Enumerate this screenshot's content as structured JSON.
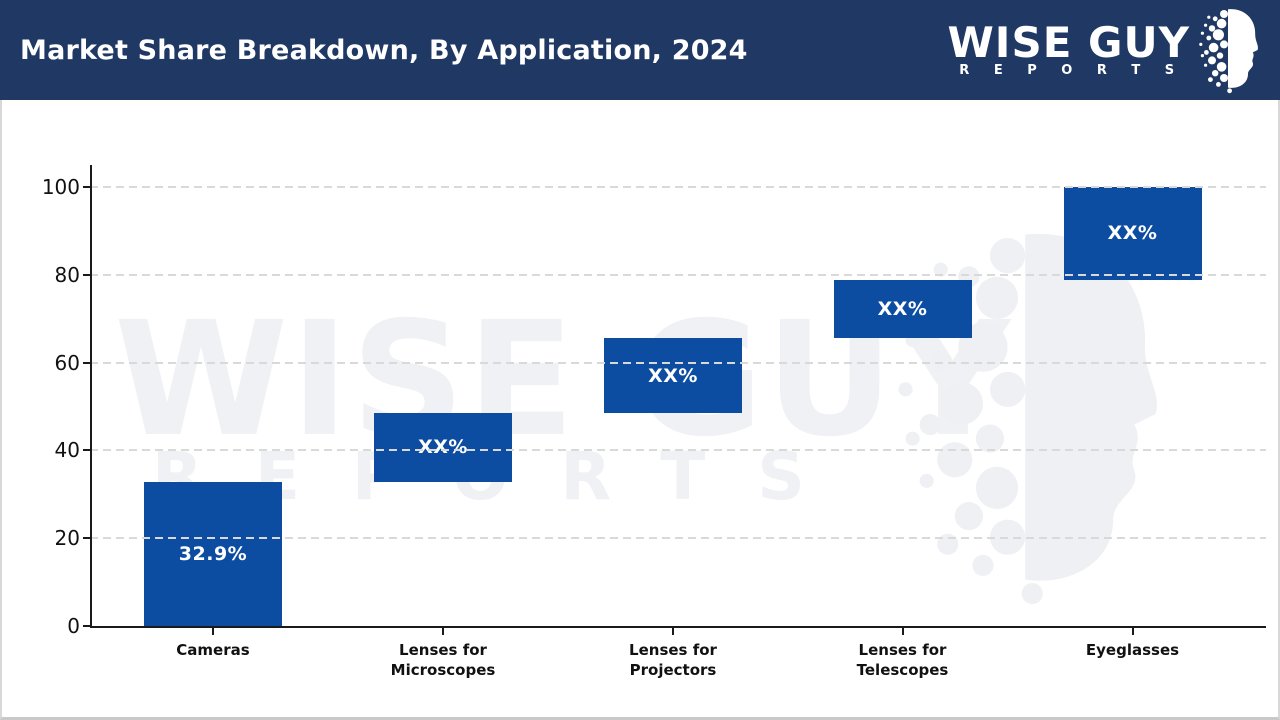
{
  "header": {
    "title": "Market Share Breakdown, By Application, 2024",
    "background_color": "#203864",
    "logo": {
      "line1": "WISE GUY",
      "line2": "R E P O R T S"
    }
  },
  "watermark": {
    "line1": "WISE GUY",
    "line2": "REPORTS"
  },
  "chart_data": {
    "type": "bar",
    "subtype": "waterfall",
    "title": "Market Share Breakdown, By Application, 2024",
    "xlabel": "",
    "ylabel": "",
    "categories": [
      "Cameras",
      "Lenses for\nMicroscopes",
      "Lenses for\nProjectors",
      "Lenses for\nTelescopes",
      "Eyeglasses"
    ],
    "segments": [
      {
        "category": "Cameras",
        "start": 0,
        "end": 32.9,
        "label": "32.9%"
      },
      {
        "category": "Lenses for Microscopes",
        "start": 32.9,
        "end": 48.5,
        "label": "XX%"
      },
      {
        "category": "Lenses for Projectors",
        "start": 48.5,
        "end": 65.6,
        "label": "XX%"
      },
      {
        "category": "Lenses for Telescopes",
        "start": 65.6,
        "end": 78.9,
        "label": "XX%"
      },
      {
        "category": "Eyeglasses",
        "start": 78.9,
        "end": 100,
        "label": "XX%"
      }
    ],
    "yticks": [
      0,
      20,
      40,
      60,
      80,
      100
    ],
    "ylim": [
      0,
      105
    ],
    "grid": "horizontal dashed, drawn over bars",
    "legend": "none",
    "bar_color": "#0C4DA2",
    "bar_label_color": "#ffffff",
    "grid_color": "#d9d9d9",
    "axis_color": "#1a1a1a"
  }
}
